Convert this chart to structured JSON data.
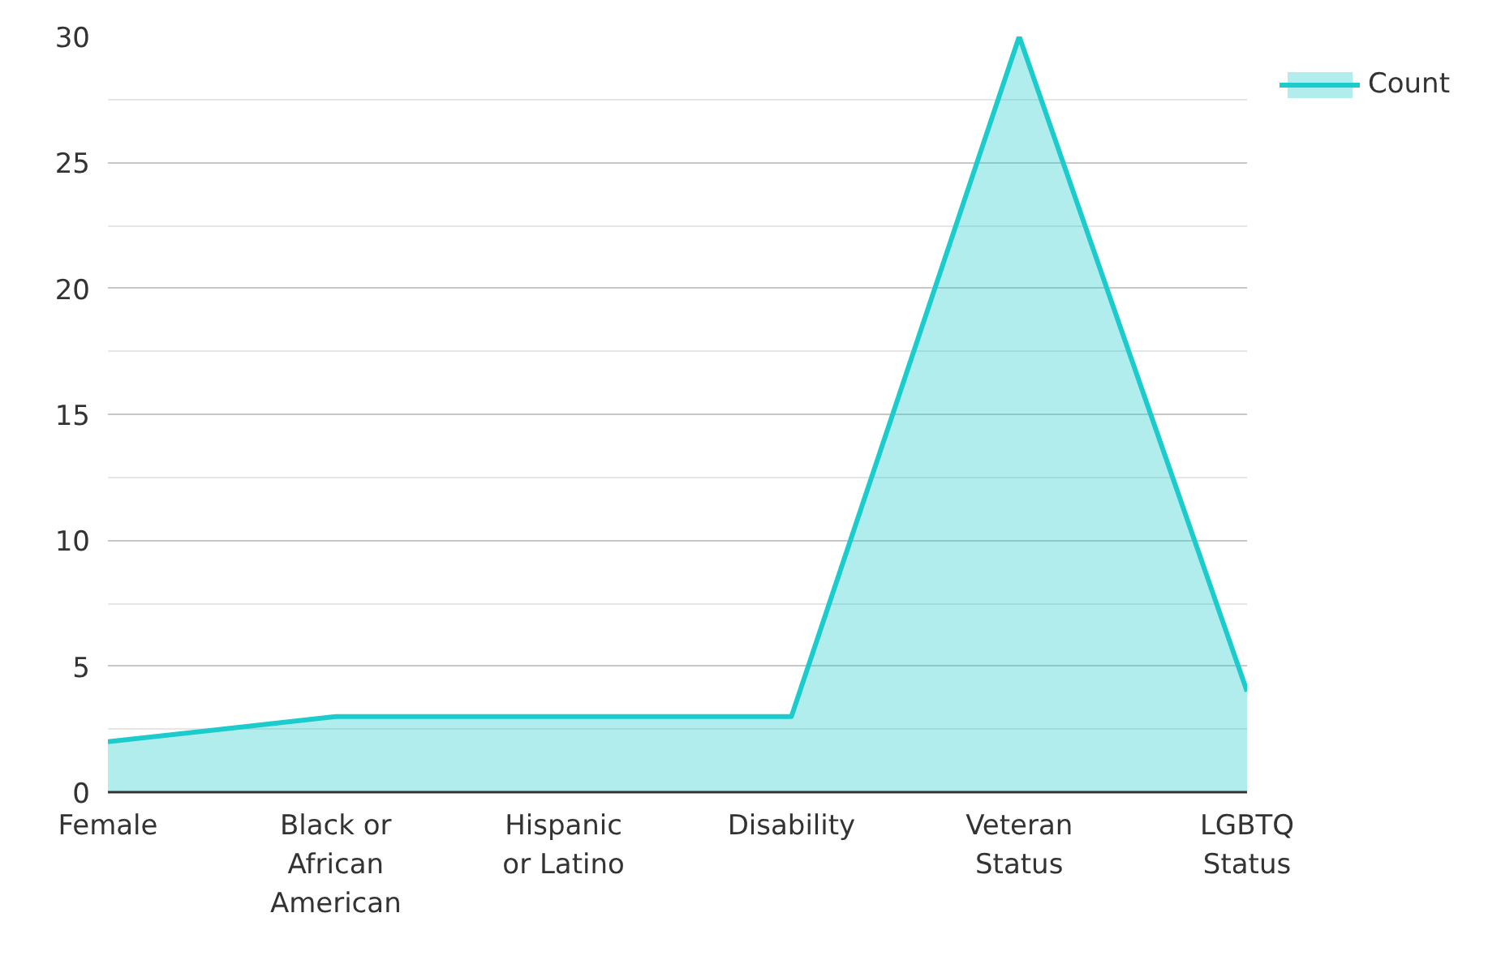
{
  "chart_data": {
    "type": "area",
    "categories": [
      "Female",
      "Black or African American",
      "Hispanic or Latino",
      "Disability",
      "Veteran Status",
      "LGBTQ Status"
    ],
    "series": [
      {
        "name": "Count",
        "color": "#1ccbcb",
        "values": [
          2,
          3,
          3,
          3,
          30,
          4
        ]
      }
    ],
    "ylim": [
      0,
      30
    ],
    "yticks": [
      0,
      5,
      10,
      15,
      20,
      25,
      30
    ],
    "grid": "y",
    "legend": "top right"
  }
}
